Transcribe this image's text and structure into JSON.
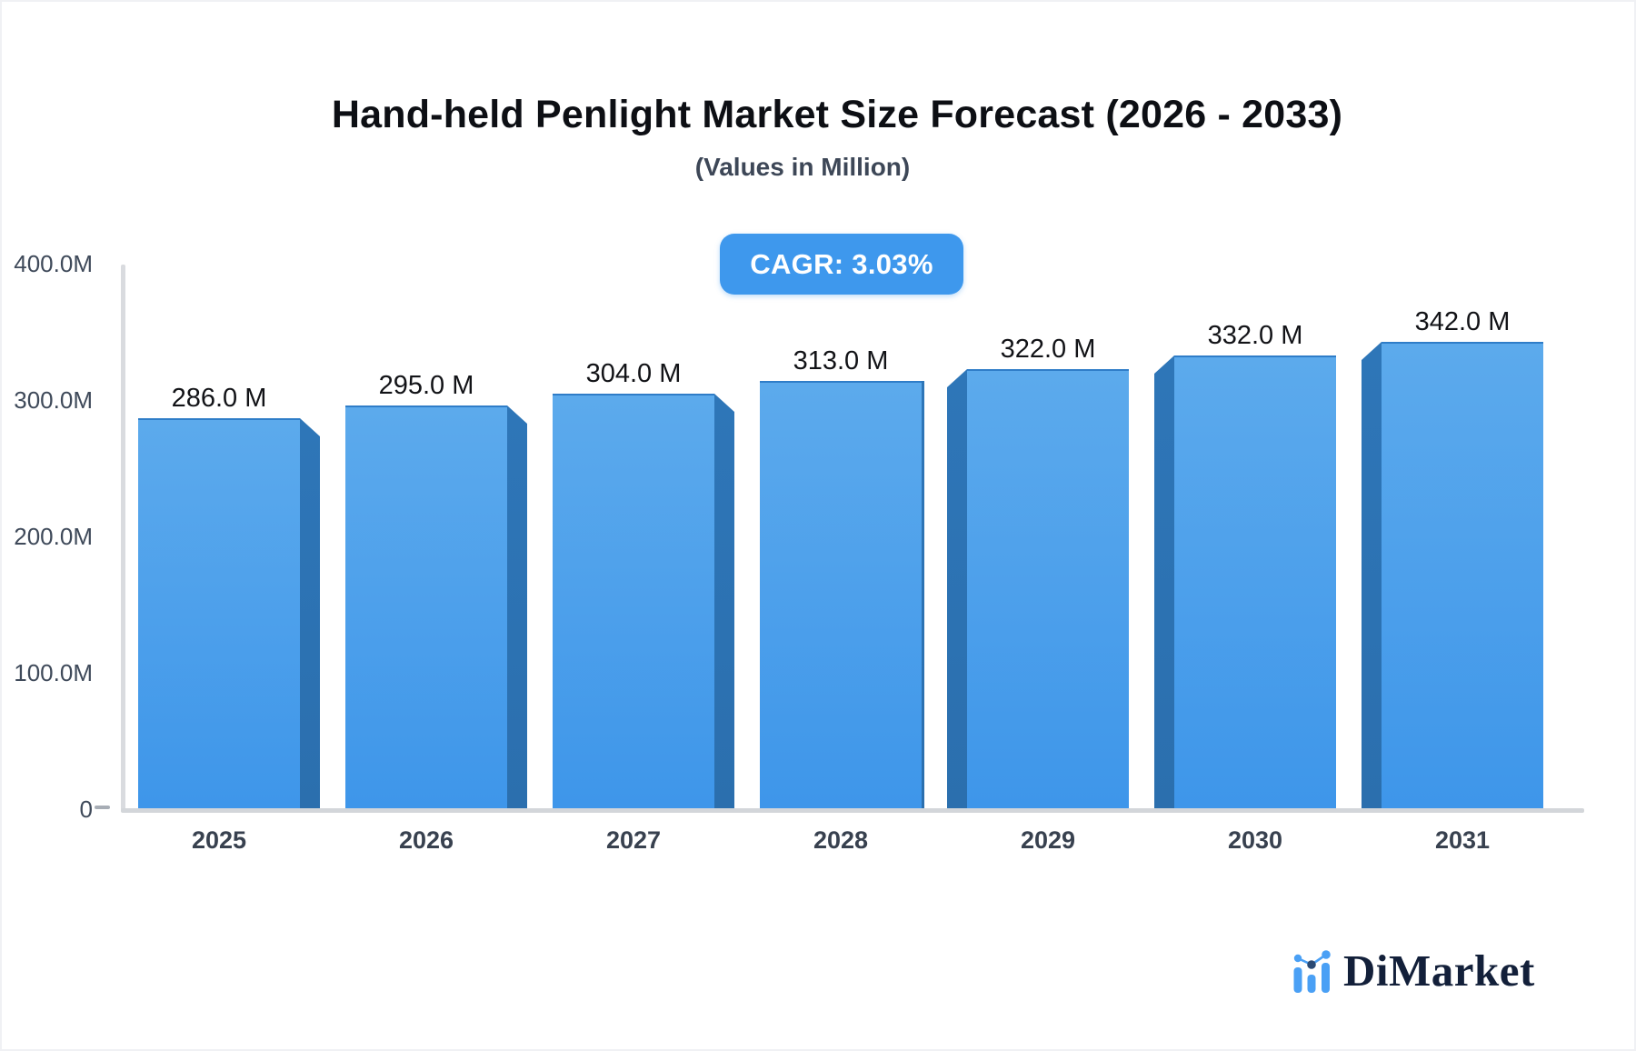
{
  "title": "Hand-held Penlight Market Size Forecast (2026 - 2033)",
  "subtitle": "(Values in Million)",
  "cagr_badge": "CAGR: 3.03%",
  "brand": {
    "name": "DiMarket"
  },
  "colors": {
    "badge_bg": "#3e98ed",
    "bar_face_top": "#5caaec",
    "bar_face_bottom": "#3e96ea",
    "bar_side": "#2e76b8",
    "bar_side_dark": "#2b6fae",
    "logo_blue": "#4aa0f5",
    "logo_navy": "#13203a"
  },
  "chart_data": {
    "type": "bar",
    "title": "Hand-held Penlight Market Size Forecast (2026 - 2033)",
    "subtitle": "(Values in Million)",
    "unit": "Million",
    "categories": [
      "2025",
      "2026",
      "2027",
      "2028",
      "2029",
      "2030",
      "2031"
    ],
    "values": [
      286,
      295,
      304,
      313,
      322,
      332,
      342
    ],
    "value_labels": [
      "286.0 M",
      "295.0 M",
      "304.0 M",
      "313.0 M",
      "322.0 M",
      "332.0 M",
      "342.0 M"
    ],
    "y_ticks": [
      {
        "value": 400,
        "label": "400.0M"
      },
      {
        "value": 300,
        "label": "300.0M"
      },
      {
        "value": 200,
        "label": "200.0M"
      },
      {
        "value": 100,
        "label": "100.0M"
      },
      {
        "value": 0,
        "label": "0"
      }
    ],
    "ylim": [
      0,
      400
    ],
    "grid": false,
    "legend": false,
    "cagr": "3.03%"
  }
}
